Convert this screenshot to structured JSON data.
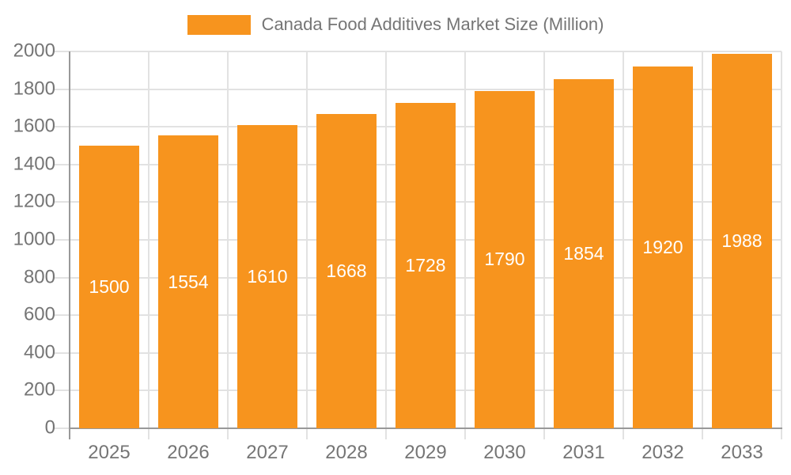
{
  "chart_data": {
    "type": "bar",
    "title": "Canada Food Additives Market Size (Million)",
    "categories": [
      "2025",
      "2026",
      "2027",
      "2028",
      "2029",
      "2030",
      "2031",
      "2032",
      "2033"
    ],
    "values": [
      1500,
      1554,
      1610,
      1668,
      1728,
      1790,
      1854,
      1920,
      1988
    ],
    "xlabel": "",
    "ylabel": "",
    "ylim": [
      0,
      2000
    ],
    "ytick_step": 200,
    "grid": true,
    "legend_position": "top-center",
    "bar_color": "#F7941E",
    "value_label_color": "#FFFFFF",
    "axis_text_color": "#757575",
    "grid_color": "#E2E2E2",
    "axis_line_color": "#999999"
  }
}
